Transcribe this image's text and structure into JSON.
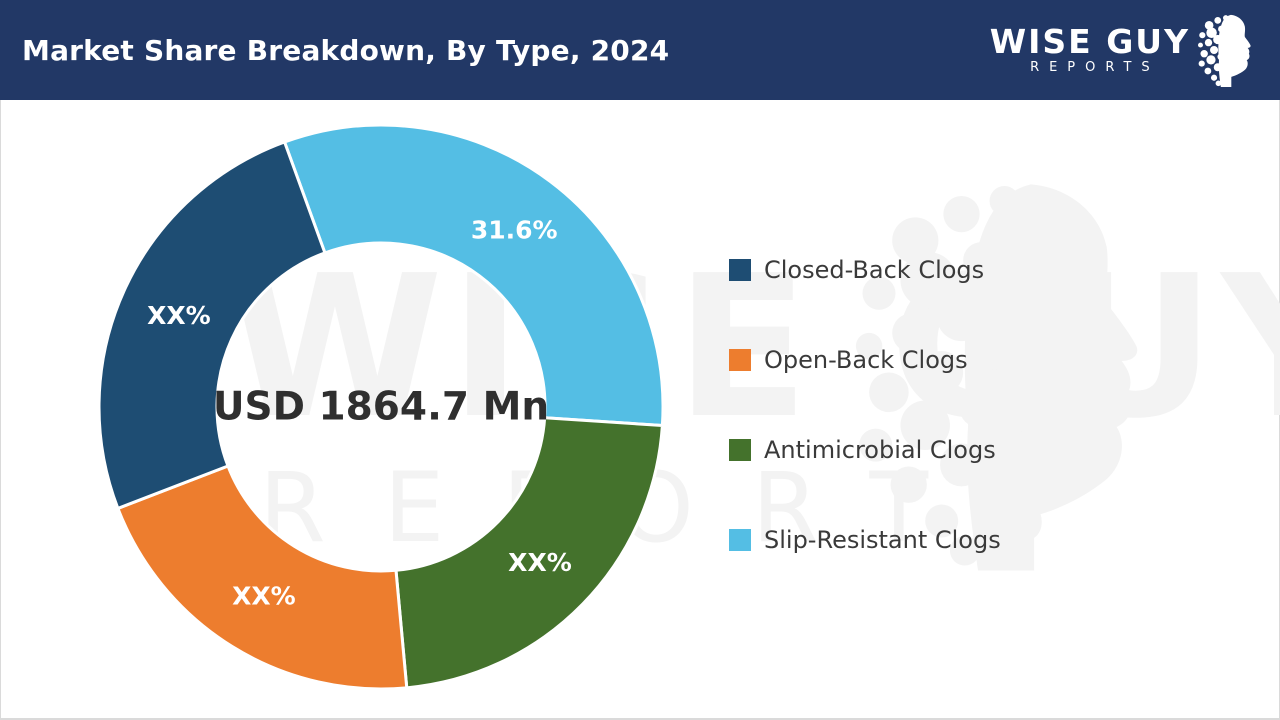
{
  "header": {
    "title": "Market Share Breakdown, By Type, 2024",
    "logo": {
      "line1": "WISE GUY",
      "line2": "REPORTS"
    }
  },
  "watermark": {
    "line1": "WISE GUY",
    "line2": "REPORTS"
  },
  "chart_data": {
    "type": "pie",
    "subtype": "donut",
    "title": "Market Share Breakdown, By Type, 2024",
    "center_label": "USD 1864.7 Mn",
    "start_angle_deg": 110,
    "direction": "clockwise",
    "legend_position": "right",
    "slices": [
      {
        "label": "Slip-Resistant Clogs",
        "value_pct": 31.6,
        "display_label": "31.6%",
        "color": "#54BEE4"
      },
      {
        "label": "Antimicrobial Clogs",
        "value_pct": 22.5,
        "display_label": "XX%",
        "color": "#44722C"
      },
      {
        "label": "Open-Back Clogs",
        "value_pct": 20.6,
        "display_label": "XX%",
        "color": "#ED7D2E"
      },
      {
        "label": "Closed-Back Clogs",
        "value_pct": 25.3,
        "display_label": "XX%",
        "color": "#1E4D73"
      }
    ]
  },
  "legend": {
    "items": [
      {
        "label": "Closed-Back Clogs",
        "color": "#1E4D73"
      },
      {
        "label": "Open-Back Clogs",
        "color": "#ED7D2E"
      },
      {
        "label": "Antimicrobial Clogs",
        "color": "#44722C"
      },
      {
        "label": "Slip-Resistant Clogs",
        "color": "#54BEE4"
      }
    ]
  }
}
